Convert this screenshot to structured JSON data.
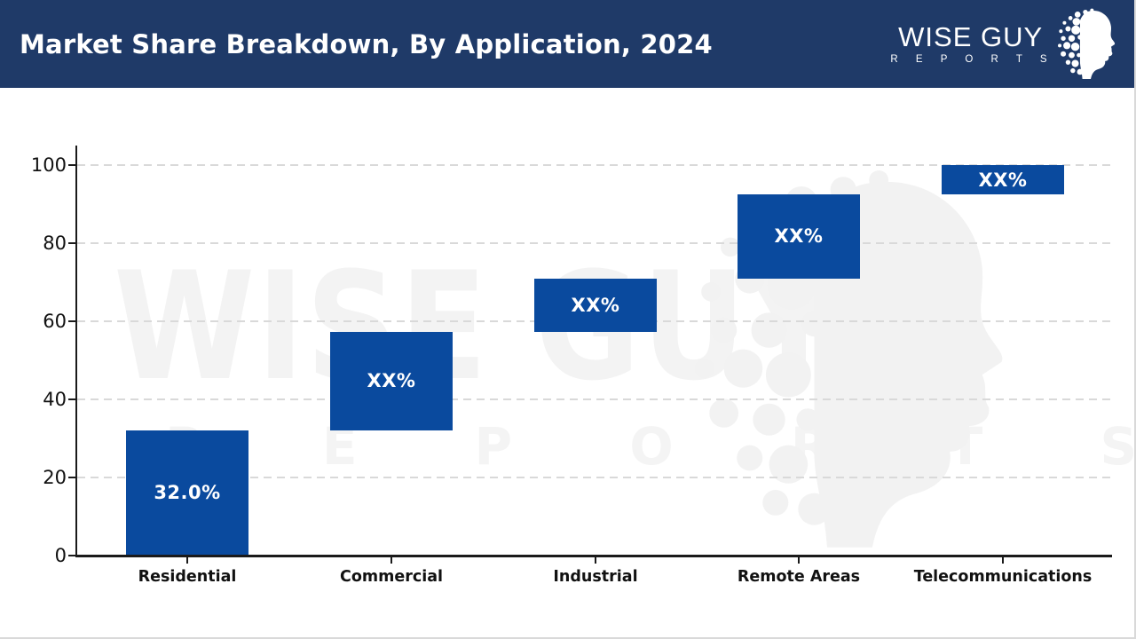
{
  "header": {
    "title": "Market Share Breakdown, By Application, 2024",
    "logo": {
      "line1": "WISE GUY",
      "line2": "R E P O R T S"
    }
  },
  "watermark": {
    "line1": "WISE GUY",
    "line2": "R E P O R T S"
  },
  "colors": {
    "header_bg": "#1f3a68",
    "bar": "#0a4a9e",
    "bar_label": "#ffffff",
    "axis": "#1a1a1a",
    "gridline": "#d9d9d9",
    "watermark": "#f2f2f2",
    "title_text": "#ffffff"
  },
  "chart_data": {
    "type": "bar",
    "subtype": "waterfall",
    "title": "Market Share Breakdown, By Application, 2024",
    "xlabel": "",
    "ylabel": "",
    "categories": [
      "Residential",
      "Commercial",
      "Industrial",
      "Remote Areas",
      "Telecommunications"
    ],
    "segments": [
      {
        "category": "Residential",
        "start": 0,
        "end": 32,
        "label": "32.0%"
      },
      {
        "category": "Commercial",
        "start": 32,
        "end": 57.3,
        "label": "XX%"
      },
      {
        "category": "Industrial",
        "start": 57.3,
        "end": 71,
        "label": "XX%"
      },
      {
        "category": "Remote Areas",
        "start": 71,
        "end": 92.5,
        "label": "XX%"
      },
      {
        "category": "Telecommunications",
        "start": 92.5,
        "end": 100,
        "label": "XX%"
      }
    ],
    "yticks": [
      0,
      20,
      40,
      60,
      80,
      100
    ],
    "ylim": [
      0,
      105
    ],
    "grid": "horizontal-dashed",
    "legend": "none"
  }
}
